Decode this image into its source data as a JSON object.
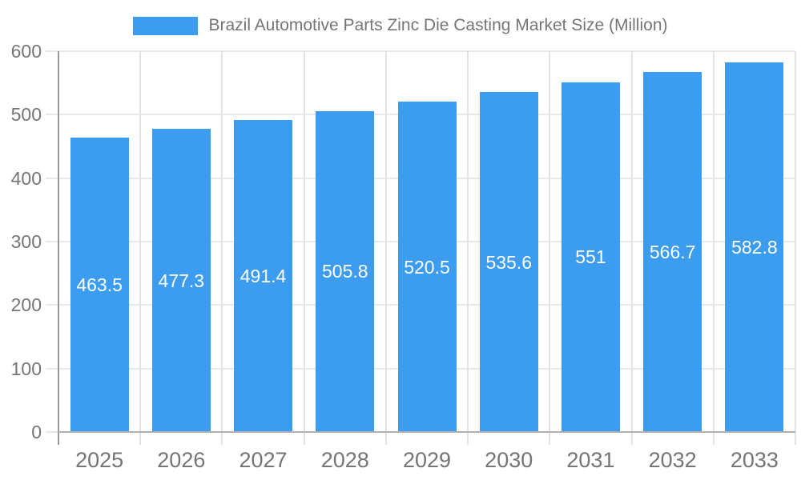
{
  "chart_data": {
    "type": "bar",
    "title": "Brazil Automotive Parts Zinc Die Casting Market Size (Million)",
    "categories": [
      "2025",
      "2026",
      "2027",
      "2028",
      "2029",
      "2030",
      "2031",
      "2032",
      "2033"
    ],
    "values": [
      463.5,
      477.3,
      491.4,
      505.8,
      520.5,
      535.6,
      551,
      566.7,
      582.8
    ],
    "value_labels": [
      "463.5",
      "477.3",
      "491.4",
      "505.8",
      "520.5",
      "535.6",
      "551",
      "566.7",
      "582.8"
    ],
    "xlabel": "",
    "ylabel": "",
    "ylim": [
      0,
      600
    ],
    "yticks": [
      0,
      100,
      200,
      300,
      400,
      500,
      600
    ],
    "grid": true,
    "legend_position": "top",
    "value_label_position": "inside-center",
    "colors": {
      "bar": "#3B9CF0",
      "bar_label": "#FFFFFF",
      "axis_text": "#757575",
      "y_axis_line": "#999999",
      "x_axis_line": "#B0B0B0",
      "gridline_h": "#E8E8E8",
      "gridline_v": "#E2E2E2",
      "background": "#FFFFFF"
    }
  }
}
